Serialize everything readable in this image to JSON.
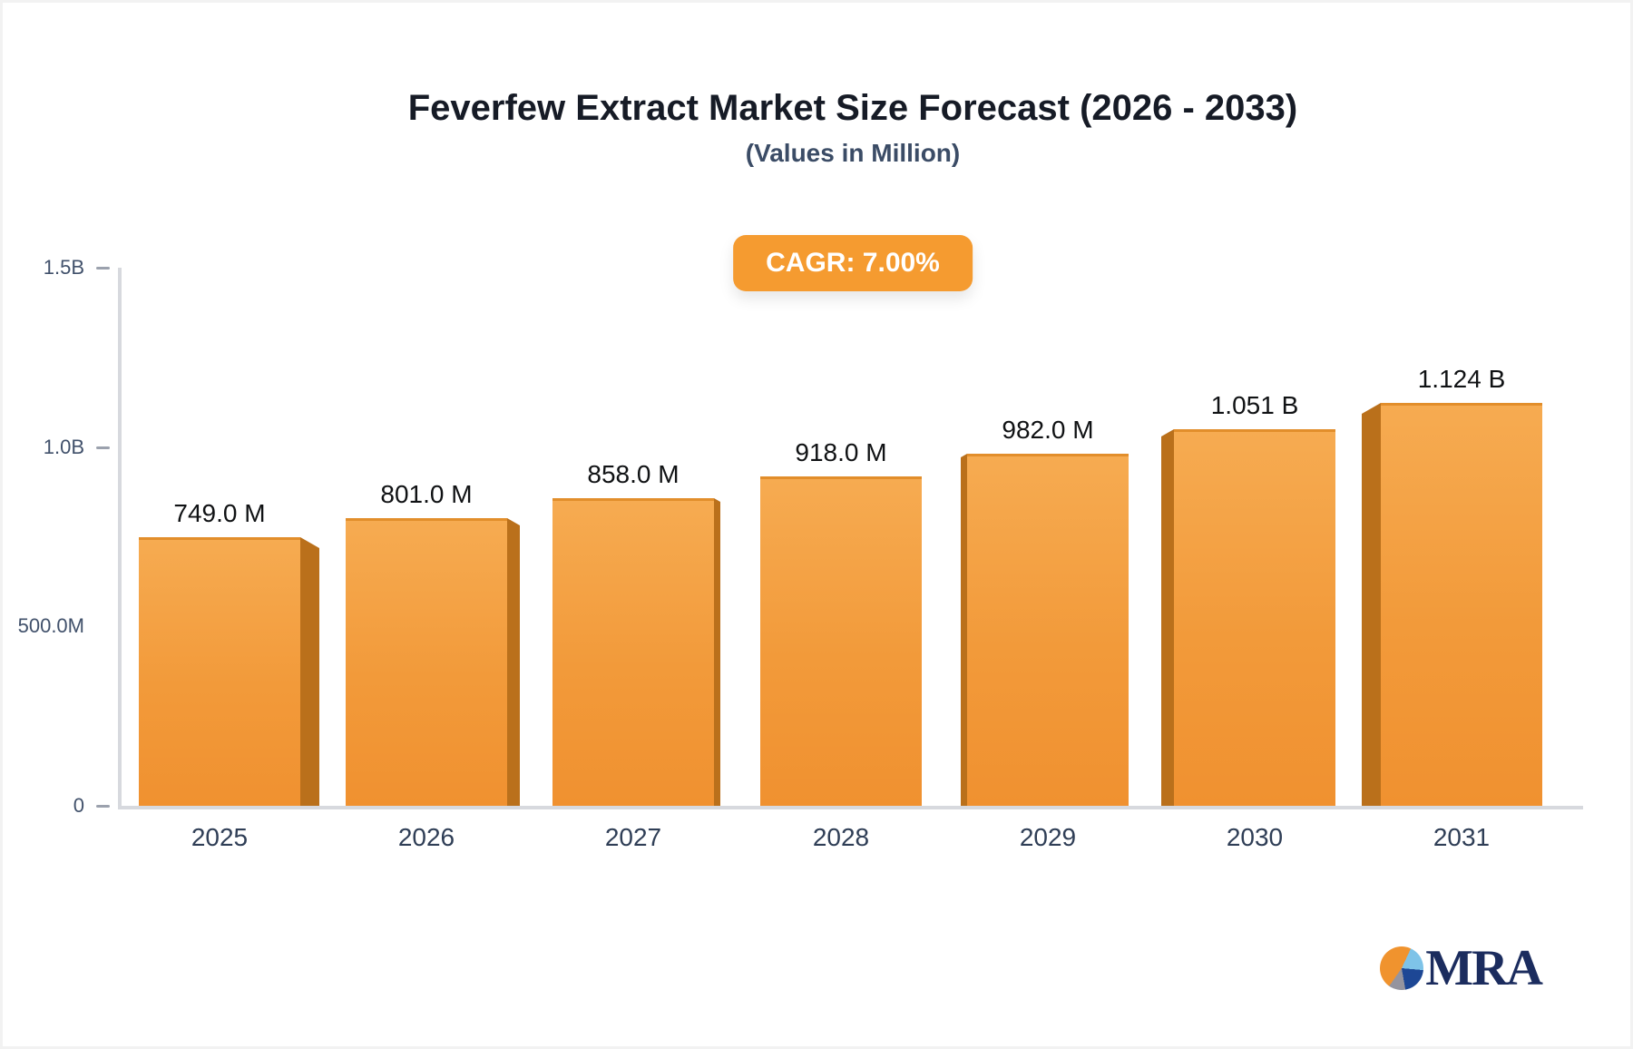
{
  "header": {
    "title": "Feverfew Extract Market Size Forecast (2026 - 2033)",
    "subtitle": "(Values in Million)",
    "cagr_badge": "CAGR: 7.00%"
  },
  "chart_data": {
    "type": "bar",
    "title": "Feverfew Extract Market Size Forecast (2026 - 2033)",
    "subtitle": "(Values in Million)",
    "cagr": "7.00%",
    "categories": [
      "2025",
      "2026",
      "2027",
      "2028",
      "2029",
      "2030",
      "2031"
    ],
    "values_millions": [
      749,
      801,
      858,
      918,
      982,
      1051,
      1124
    ],
    "bar_labels": [
      "749.0 M",
      "801.0 M",
      "858.0 M",
      "918.0 M",
      "982.0 M",
      "1.051 B",
      "1.124 B"
    ],
    "y_axis": {
      "max_millions": 1500,
      "ticks": [
        {
          "label": "0",
          "value_millions": 0,
          "dash": true
        },
        {
          "label": "500.0M",
          "value_millions": 500,
          "dash": false
        },
        {
          "label": "1.0B",
          "value_millions": 1000,
          "dash": true
        },
        {
          "label": "1.5B",
          "value_millions": 1500,
          "dash": true
        }
      ]
    },
    "legend": "none",
    "grid": "off"
  },
  "colors": {
    "bar_face_top": "#f6ab51",
    "bar_face_bottom": "#f09130",
    "bar_side": "#ba701b",
    "accent_orange": "#f59b30",
    "title_text": "#161b26",
    "subtitle_text": "#3b4c66",
    "axis_text": "#41516b",
    "x_axis_text": "#2f3e56",
    "value_text": "#101214",
    "axis_line": "#d7d9de",
    "logo_navy": "#1b2c5e",
    "logo_lightblue": "#7ec3e8",
    "logo_blue": "#1d4795",
    "logo_gray": "#95949e",
    "logo_orange": "#f0932e"
  },
  "logo": {
    "text": "MRA"
  }
}
